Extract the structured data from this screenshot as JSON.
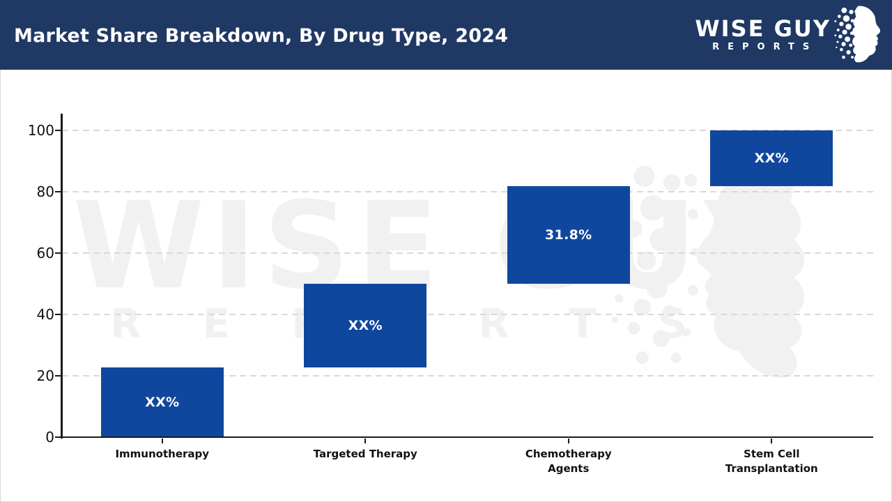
{
  "header": {
    "title": "Market Share Breakdown, By Drug Type, 2024",
    "logo": {
      "name_top": "WISE GUY",
      "name_bottom": "REPORTS"
    }
  },
  "watermark": {
    "big_text": "WISE GUY",
    "sub_text": "REPORTS"
  },
  "icons": {
    "logo_face": "dotted-head-profile",
    "watermark_face": "dotted-head-profile"
  },
  "colors": {
    "header_bg": "#1f3864",
    "title_text": "#ffffff",
    "bar": "#0f479e",
    "bar_label_text": "#ffffff",
    "grid": "#d9d9d9",
    "axis": "#1a1a1a",
    "tick_label": "#111111",
    "watermark": "#f1f1f2"
  },
  "chart_data": {
    "type": "bar",
    "subtype": "waterfall",
    "title": "Market Share Breakdown, By Drug Type, 2024",
    "categories": [
      "Immunotherapy",
      "Targeted Therapy",
      "Chemotherapy\nAgents",
      "Stem Cell\nTransplantation"
    ],
    "segments": [
      {
        "category": "Immunotherapy",
        "start": 0,
        "end": 22.7,
        "label": "XX%"
      },
      {
        "category": "Targeted Therapy",
        "start": 22.7,
        "end": 50,
        "label": "XX%"
      },
      {
        "category": "Chemotherapy Agents",
        "start": 50,
        "end": 81.8,
        "label": "31.8%"
      },
      {
        "category": "Stem Cell Transplantation",
        "start": 81.8,
        "end": 100,
        "label": "XX%"
      }
    ],
    "yticks": [
      0,
      20,
      40,
      60,
      80,
      100
    ],
    "ylim": [
      0,
      105.5
    ],
    "xlabel": "",
    "ylabel": "",
    "grid": "horizontal-dashed",
    "legend": "none",
    "bar_color": "#0f479e"
  }
}
